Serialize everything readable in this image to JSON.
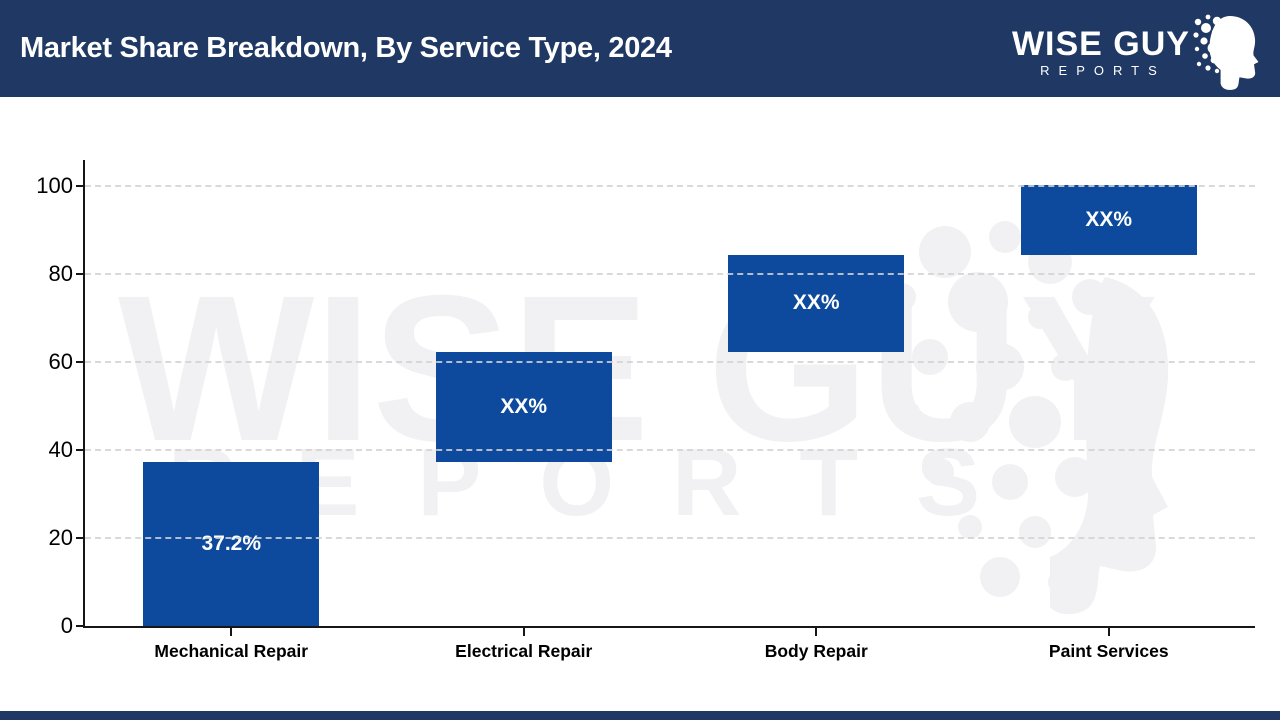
{
  "header": {
    "title": "Market Share Breakdown, By Service Type, 2024",
    "logo": {
      "line1": "WISE GUY",
      "line2": "REPORTS"
    }
  },
  "watermark": {
    "line1": "WISE GUY",
    "line2": "REPORTS"
  },
  "chart_data": {
    "type": "bar",
    "subtype": "floating-segment-waterfall",
    "title": "Market Share Breakdown, By Service Type, 2024",
    "categories": [
      "Mechanical Repair",
      "Electrical Repair",
      "Body Repair",
      "Paint Services"
    ],
    "segments": [
      {
        "category": "Mechanical Repair",
        "start": 0,
        "end": 37.2,
        "label": "37.2%"
      },
      {
        "category": "Electrical Repair",
        "start": 37.2,
        "end": 62.3,
        "label": "XX%"
      },
      {
        "category": "Body Repair",
        "start": 62.3,
        "end": 84.4,
        "label": "XX%"
      },
      {
        "category": "Paint Services",
        "start": 84.4,
        "end": 100.2,
        "label": "XX%"
      }
    ],
    "y_ticks": [
      0,
      20,
      40,
      60,
      80,
      100
    ],
    "ylim": [
      0,
      105
    ],
    "xlabel": "",
    "ylabel": "",
    "grid": "dashed-horizontal",
    "legend": "none",
    "bar_color": "#0d4a9e",
    "bar_label_color": "#ffffff"
  },
  "colors": {
    "header_bg": "#1f3864",
    "footer_bg": "#1f3864",
    "bar": "#0d4a9e",
    "axis": "#161616",
    "gridline": "#d2d2d2",
    "watermark": "#f1f1f3",
    "background": "#ffffff"
  }
}
